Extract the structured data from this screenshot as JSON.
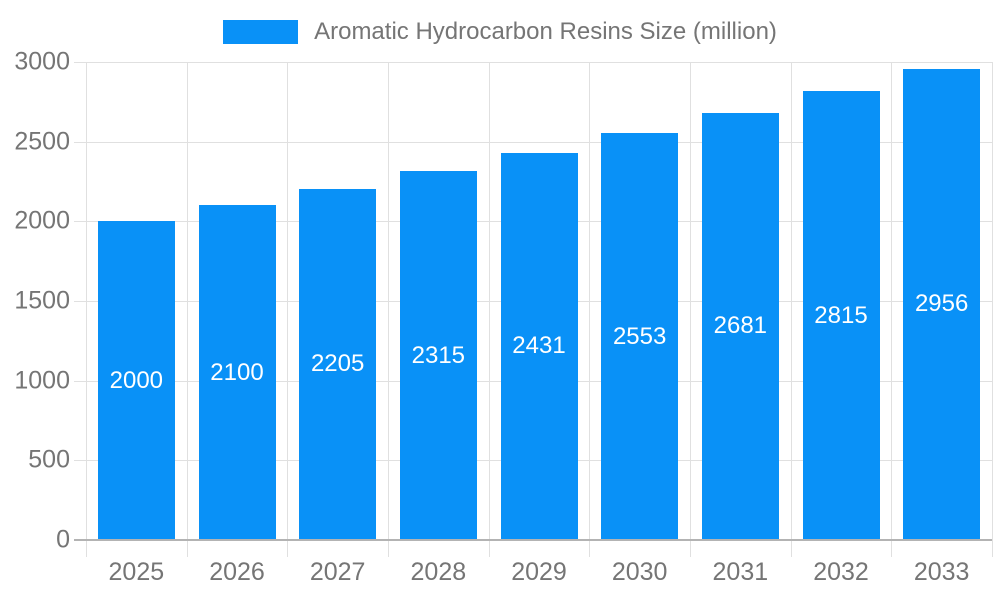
{
  "legend": {
    "label": "Aromatic Hydrocarbon Resins Size (million)"
  },
  "chart_data": {
    "type": "bar",
    "title": "Aromatic Hydrocarbon Resins Size (million)",
    "categories": [
      "2025",
      "2026",
      "2027",
      "2028",
      "2029",
      "2030",
      "2031",
      "2032",
      "2033"
    ],
    "values": [
      2000,
      2100,
      2205,
      2315,
      2431,
      2553,
      2681,
      2815,
      2956
    ],
    "xlabel": "",
    "ylabel": "",
    "ylim": [
      0,
      3000
    ],
    "yticks": [
      0,
      500,
      1000,
      1500,
      2000,
      2500,
      3000
    ],
    "grid": true,
    "bar_value_labels": true,
    "legend_position": "top-center",
    "colors": {
      "bar": "#0991f7",
      "grid": "#e0e0e0",
      "axis": "#b3b3b3",
      "text": "#757575",
      "value_label": "#ffffff",
      "background": "#ffffff"
    }
  }
}
